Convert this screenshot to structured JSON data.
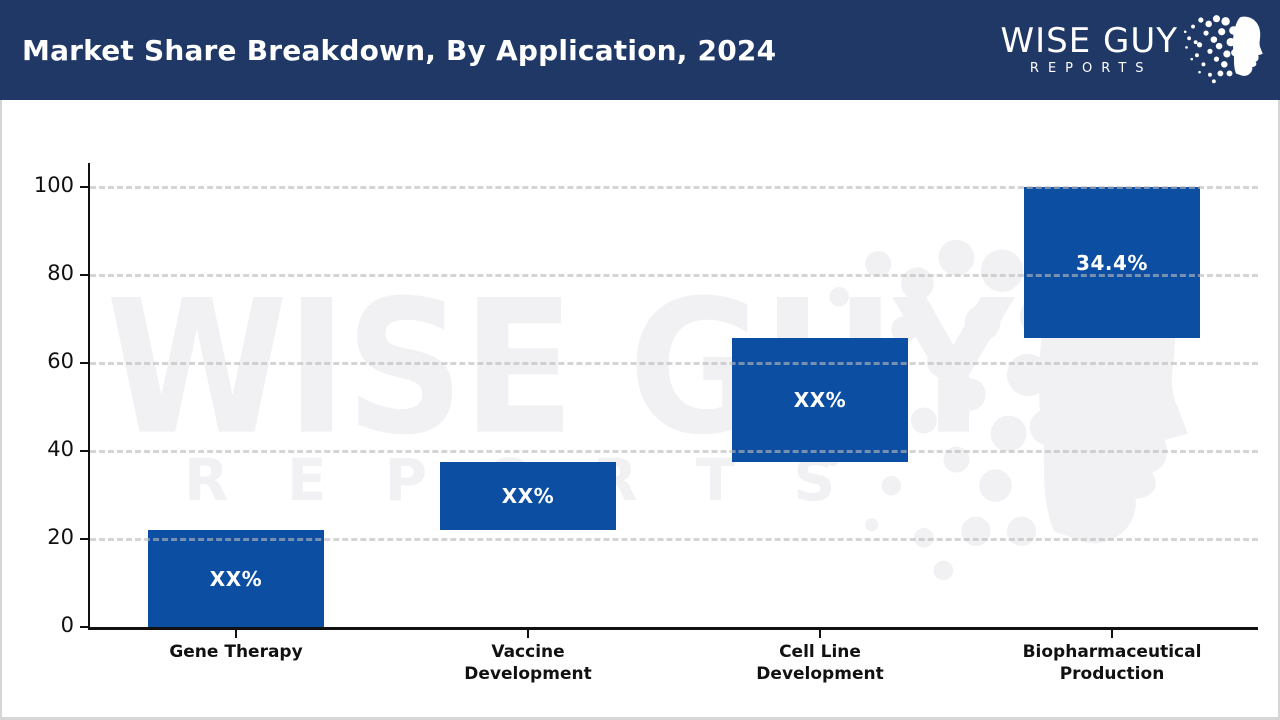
{
  "header": {
    "title": "Market Share Breakdown, By Application, 2024",
    "logo": {
      "brand": "WISE GUY",
      "sub": "REPORTS"
    }
  },
  "watermark": {
    "brand": "WISE GUY",
    "sub": "R E P O R T S"
  },
  "colors": {
    "header_bg": "#1F3866",
    "bar": "#0B4EA2",
    "bar_label": "#FFFFFF",
    "axis": "#111111",
    "grid": "#C9C9C9",
    "watermark": "#F1F1F4"
  },
  "chart_data": {
    "type": "bar",
    "subtype": "waterfall",
    "title": "Market Share Breakdown, By Application, 2024",
    "categories": [
      "Gene Therapy",
      "Vaccine\nDevelopment",
      "Cell Line\nDevelopment",
      "Biopharmaceutical\nProduction"
    ],
    "segments": [
      {
        "category": "Gene Therapy",
        "start": 0,
        "end": 22,
        "value_label": "XX%"
      },
      {
        "category": "Vaccine Development",
        "start": 22,
        "end": 37.5,
        "value_label": "XX%"
      },
      {
        "category": "Cell Line Development",
        "start": 37.5,
        "end": 65.6,
        "value_label": "XX%"
      },
      {
        "category": "Biopharmaceutical Production",
        "start": 65.6,
        "end": 100,
        "value_label": "34.4%"
      }
    ],
    "yticks": [
      0,
      20,
      40,
      60,
      80,
      100
    ],
    "ylim": [
      0,
      105
    ],
    "xlabel": "",
    "ylabel": "",
    "grid": "dashed-horizontal",
    "legend": "none"
  }
}
